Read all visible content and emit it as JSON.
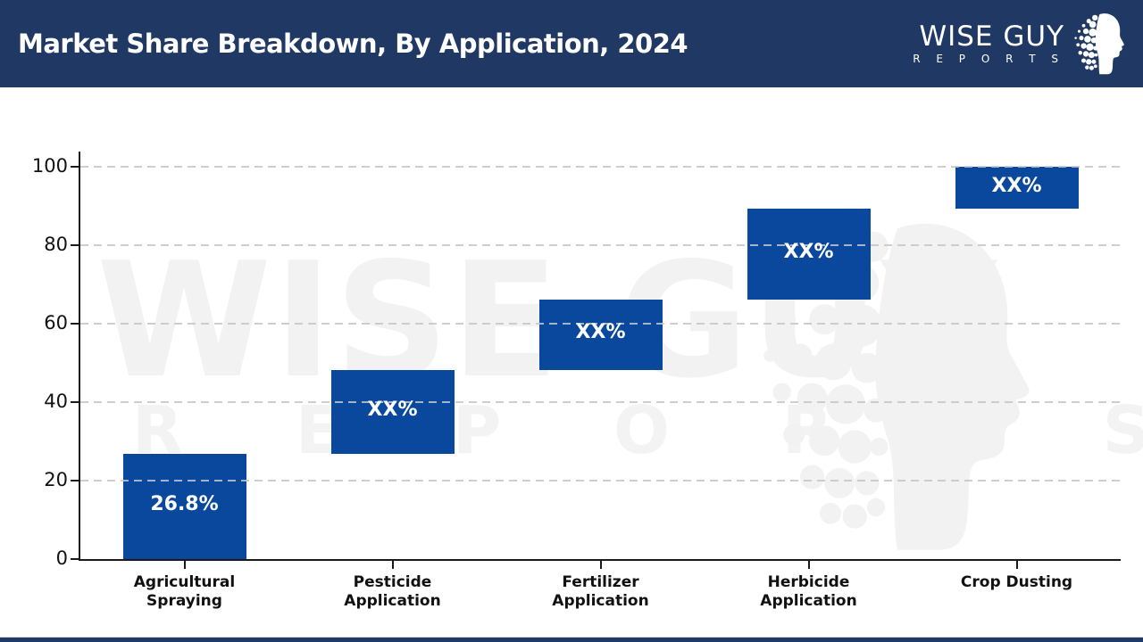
{
  "header": {
    "title": "Market Share Breakdown, By Application, 2024",
    "logo": {
      "line1": "WISE GUY",
      "line2": "R E P O R T S"
    }
  },
  "watermark": {
    "line1": "WISE GUY",
    "line2": "R E P O R T S"
  },
  "chart_data": {
    "type": "bar",
    "subtype": "waterfall",
    "title": "Market Share Breakdown, By Application, 2024",
    "categories": [
      "Agricultural Spraying",
      "Pesticide Application",
      "Fertilizer Application",
      "Herbicide Application",
      "Crop Dusting"
    ],
    "category_lines": [
      [
        "Agricultural",
        "Spraying"
      ],
      [
        "Pesticide",
        "Application"
      ],
      [
        "Fertilizer",
        "Application"
      ],
      [
        "Herbicide",
        "Application"
      ],
      [
        "Crop Dusting"
      ]
    ],
    "segments": [
      {
        "category": "Agricultural Spraying",
        "start": 0,
        "end": 26.8,
        "label": "26.8%"
      },
      {
        "category": "Pesticide Application",
        "start": 26.8,
        "end": 48.2,
        "label": "XX%"
      },
      {
        "category": "Fertilizer Application",
        "start": 48.2,
        "end": 66.2,
        "label": "XX%"
      },
      {
        "category": "Herbicide Application",
        "start": 66.2,
        "end": 89.3,
        "label": "XX%"
      },
      {
        "category": "Crop Dusting",
        "start": 89.3,
        "end": 100,
        "label": "XX%"
      }
    ],
    "ylim": [
      0,
      100
    ],
    "yticks": [
      0,
      20,
      40,
      60,
      80,
      100
    ],
    "xlabel": "",
    "ylabel": "",
    "grid": "horizontal-dashed",
    "legend": "none"
  },
  "colors": {
    "header_bg": "#1f3864",
    "bar": "#0a489e",
    "bar_label": "#ffffff",
    "axis": "#1a1a1a",
    "watermark": "#f2f2f2",
    "footer_bar": "#1f3864"
  }
}
